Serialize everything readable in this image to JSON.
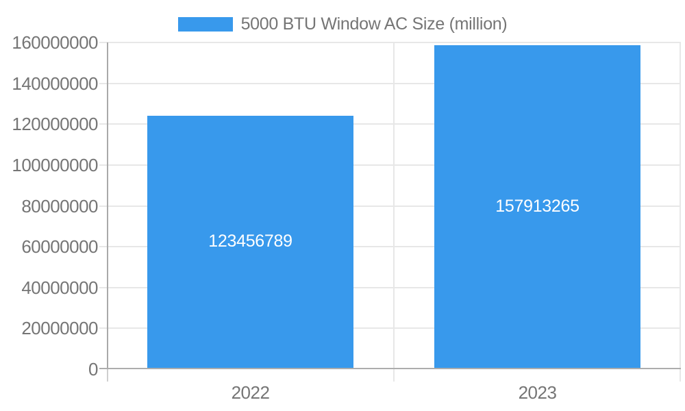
{
  "chart_data": {
    "type": "bar",
    "title": "",
    "legend": {
      "label": "5000 BTU Window AC Size (million)",
      "position": "top-center",
      "swatch_color": "#3899EC"
    },
    "categories": [
      "2022",
      "2023"
    ],
    "series": [
      {
        "name": "5000 BTU Window AC Size (million)",
        "values": [
          123456789,
          157913265
        ]
      }
    ],
    "bar_value_labels": [
      "123456789",
      "157913265"
    ],
    "xlabel": "",
    "ylabel": "",
    "ylim": [
      0,
      160000000
    ],
    "y_ticks": [
      0,
      20000000,
      40000000,
      60000000,
      80000000,
      100000000,
      120000000,
      140000000,
      160000000
    ],
    "y_tick_labels": [
      "0",
      "20000000",
      "40000000",
      "60000000",
      "80000000",
      "100000000",
      "120000000",
      "140000000",
      "160000000"
    ],
    "grid": true,
    "legend_visible": true,
    "colors": {
      "bar": "#3899EC",
      "axis_text": "#757575",
      "bar_label_text": "#FFFFFF",
      "gridline": "#E7E7E7",
      "baseline": "#ADADAD",
      "axis_line": "#A9A9A9",
      "background": "#FFFFFF"
    }
  }
}
